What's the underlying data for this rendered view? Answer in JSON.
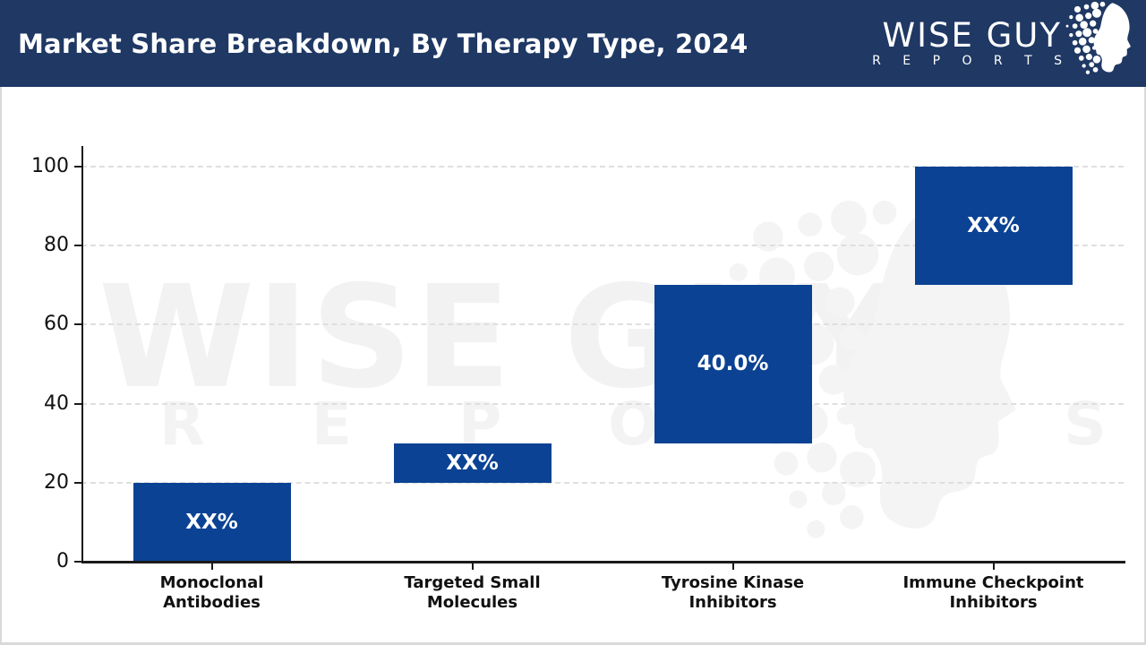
{
  "header": {
    "title": "Market Share Breakdown, By Therapy Type, 2024",
    "bg_color": "#1F3864"
  },
  "logo": {
    "line1": "WISE GUY",
    "line2": "R E P O R T S",
    "icon": "dotted-face-profile"
  },
  "watermark": {
    "line1": "WISE GUY",
    "line2": "R E P O R T S",
    "icon": "dotted-face-profile"
  },
  "chart_data": {
    "type": "bar",
    "subtype": "floating-waterfall",
    "title": "Market Share Breakdown, By Therapy Type, 2024",
    "categories": [
      "Monoclonal Antibodies",
      "Targeted Small Molecules",
      "Tyrosine Kinase Inhibitors",
      "Immune Checkpoint Inhibitors"
    ],
    "bars": [
      {
        "category_lines": [
          "Monoclonal",
          "Antibodies"
        ],
        "base": 0,
        "top": 20,
        "label": "XX%"
      },
      {
        "category_lines": [
          "Targeted Small",
          "Molecules"
        ],
        "base": 20,
        "top": 30,
        "label": "XX%"
      },
      {
        "category_lines": [
          "Tyrosine Kinase",
          "Inhibitors"
        ],
        "base": 30,
        "top": 70,
        "label": "40.0%"
      },
      {
        "category_lines": [
          "Immune Checkpoint",
          "Inhibitors"
        ],
        "base": 70,
        "top": 100,
        "label": "XX%"
      }
    ],
    "xlabel": "",
    "ylabel": "",
    "ylim": [
      0,
      100
    ],
    "yticks": [
      0,
      20,
      40,
      60,
      80,
      100
    ],
    "bar_color": "#0B4294",
    "grid": "horizontal-dashed",
    "legend": "none"
  }
}
